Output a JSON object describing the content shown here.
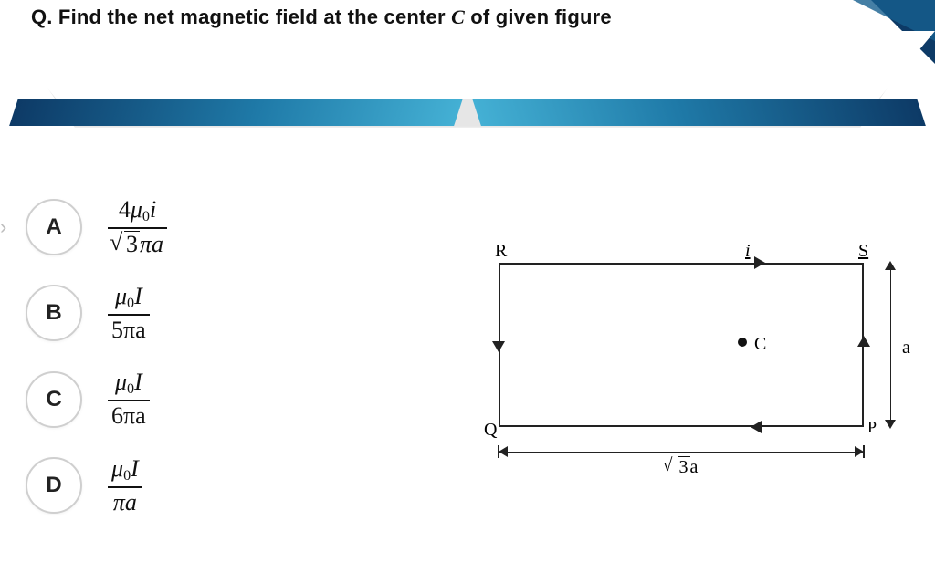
{
  "question": {
    "prefix": "Q.",
    "text_before": " Find the net magnetic field at the center ",
    "var": "C",
    "text_after": " of given figure"
  },
  "options": {
    "A": {
      "letter": "A",
      "num_coeff": "4",
      "num_mu": "μ",
      "num_sub": "0",
      "num_var": "i",
      "den_pre_sqrt": "3",
      "den_rest": "πa",
      "has_sqrt": true
    },
    "B": {
      "letter": "B",
      "num_mu": "μ",
      "num_sub": "0",
      "num_var": "I",
      "den": "5πa"
    },
    "C": {
      "letter": "C",
      "num_mu": "μ",
      "num_sub": "0",
      "num_var": "I",
      "den": "6πa"
    },
    "D": {
      "letter": "D",
      "num_mu": "μ",
      "num_sub": "0",
      "num_var": "I",
      "den": "πa"
    }
  },
  "diagram": {
    "R": "R",
    "S": "S",
    "Q": "Q",
    "P": "P",
    "i": "i",
    "C": "C",
    "bottom_sqrt": "3",
    "bottom_var": "a",
    "right_a": "a"
  }
}
